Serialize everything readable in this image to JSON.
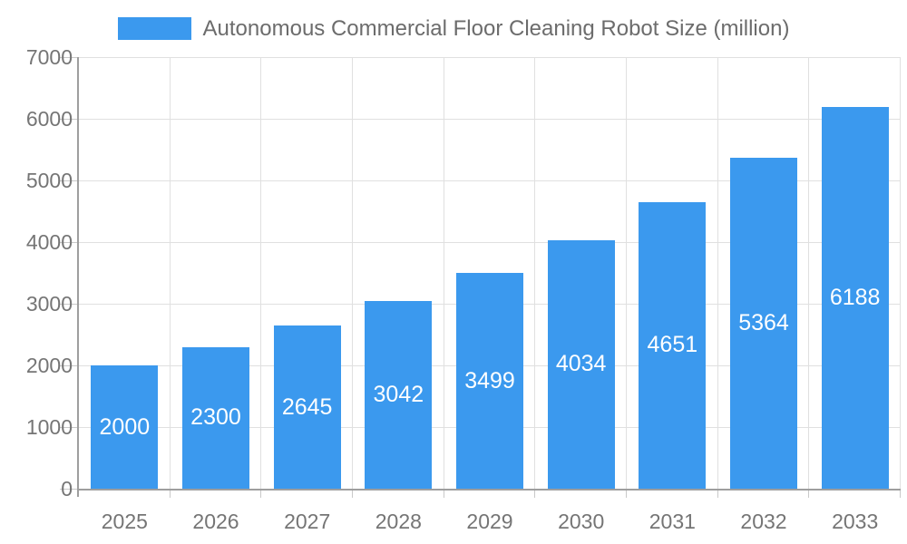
{
  "legend": {
    "label": "Autonomous Commercial Floor Cleaning Robot Size (million)",
    "swatch_color": "#3b99ee"
  },
  "chart_data": {
    "type": "bar",
    "title": "Autonomous Commercial Floor Cleaning Robot Size (million)",
    "categories": [
      "2025",
      "2026",
      "2027",
      "2028",
      "2029",
      "2030",
      "2031",
      "2032",
      "2033"
    ],
    "values": [
      2000,
      2300,
      2645,
      3042,
      3499,
      4034,
      4651,
      5364,
      6188
    ],
    "series_name": "Autonomous Commercial Floor Cleaning Robot Size (million)",
    "xlabel": "",
    "ylabel": "",
    "ylim": [
      0,
      7000
    ],
    "yticks": [
      0,
      1000,
      2000,
      3000,
      4000,
      5000,
      6000,
      7000
    ],
    "grid": true,
    "legend_position": "top",
    "bar_color": "#3b99ee",
    "bar_label_color": "#ffffff",
    "axis_text_color": "#757575",
    "axis_line_color": "#9e9e9e",
    "gridline_color": "#e0e0e0"
  }
}
